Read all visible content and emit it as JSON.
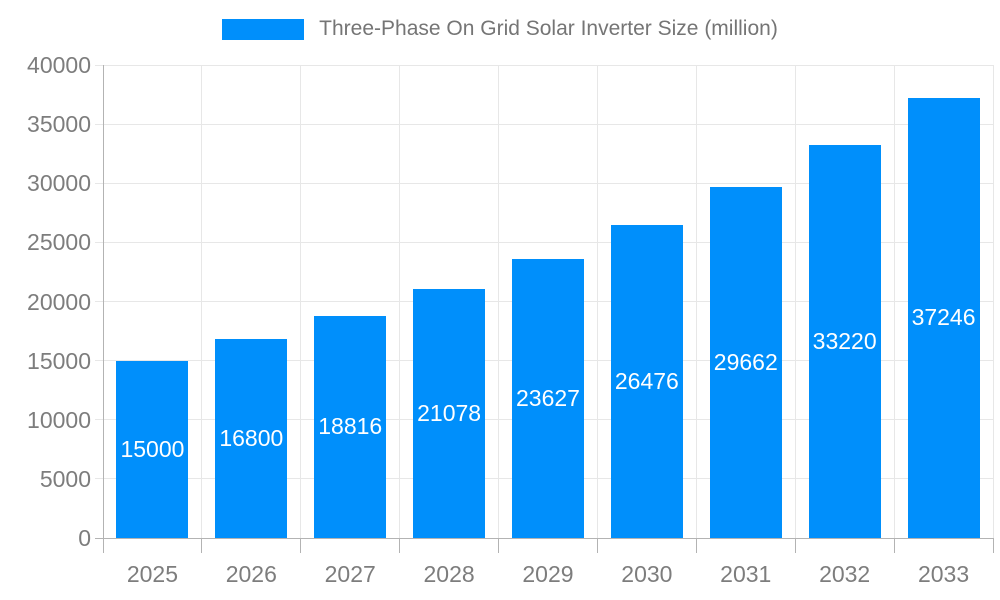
{
  "chart_data": {
    "type": "bar",
    "title": "Three-Phase On Grid Solar Inverter Size (million)",
    "categories": [
      "2025",
      "2026",
      "2027",
      "2028",
      "2029",
      "2030",
      "2031",
      "2032",
      "2033"
    ],
    "values": [
      15000,
      16800,
      18816,
      21078,
      23627,
      26476,
      29662,
      33220,
      37246
    ],
    "bar_labels": [
      "15000",
      "16800",
      "18816",
      "21078",
      "23627",
      "26476",
      "29662",
      "33220",
      "37246"
    ],
    "xlabel": "",
    "ylabel": "",
    "ylim": [
      0,
      40000
    ],
    "y_tick_step": 5000,
    "y_tick_labels": [
      "0",
      "5000",
      "10000",
      "15000",
      "20000",
      "25000",
      "30000",
      "35000",
      "40000"
    ],
    "grid": true,
    "legend_position": "top",
    "legend": [
      {
        "label": "Three-Phase On Grid Solar Inverter Size (million)",
        "color": "#008FFB"
      }
    ]
  },
  "colors": {
    "bar": "#008FFB",
    "bar_label_text": "#FFFFFF",
    "grid_line": "#E7E7E7",
    "axis_line": "#B3B3B3",
    "tick_label_text": "#7D7D7D",
    "legend_text": "#757575",
    "background": "#FFFFFF"
  }
}
